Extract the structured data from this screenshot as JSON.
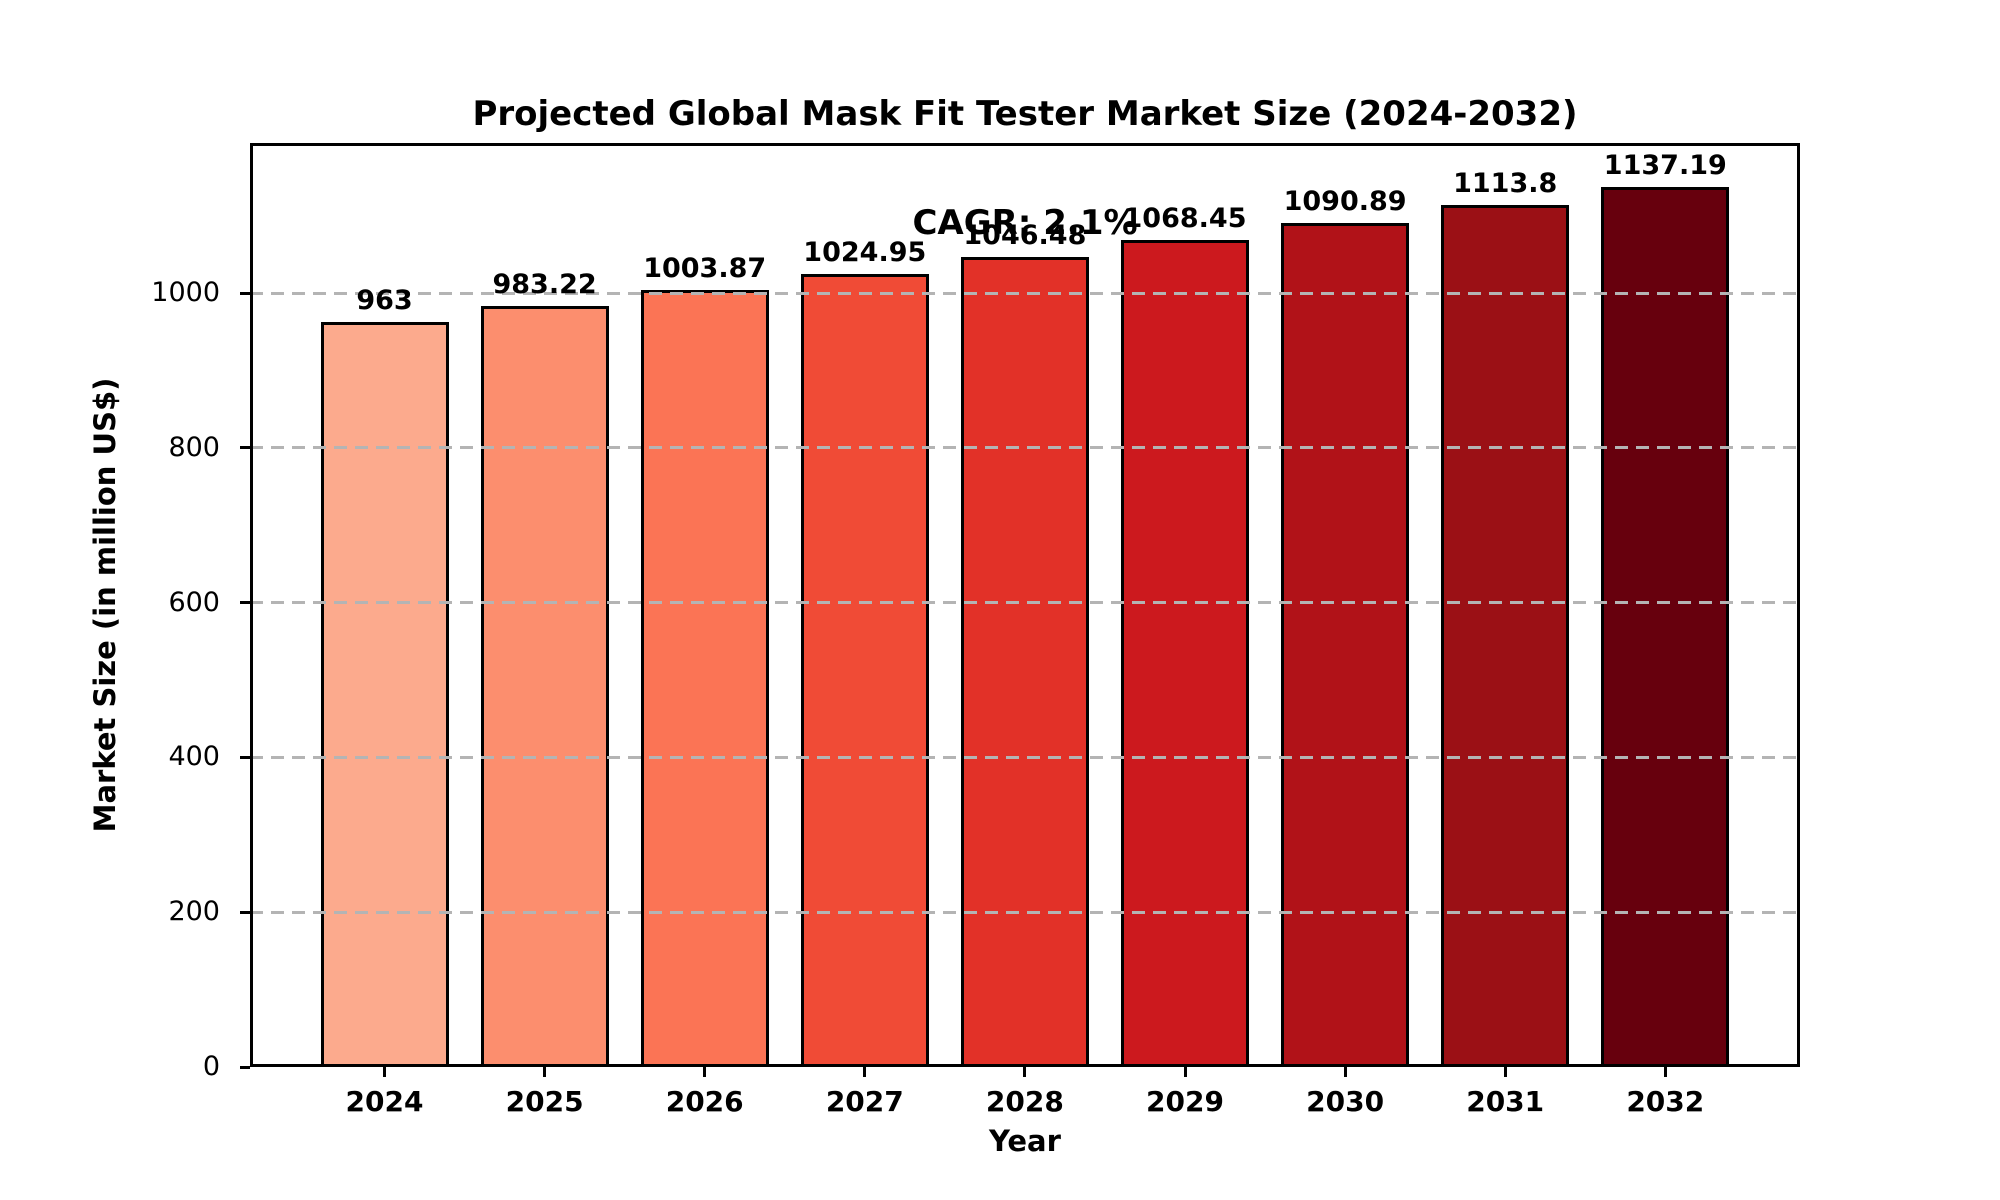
{
  "figure": {
    "background": "#ffffff"
  },
  "chart_data": {
    "type": "bar",
    "title": "Projected Global Mask Fit Tester Market Size (2024-2032)",
    "xlabel": "Year",
    "ylabel": "Market Size (in million US$)",
    "annotation": "CAGR: 2.1%",
    "categories": [
      "2024",
      "2025",
      "2026",
      "2027",
      "2028",
      "2029",
      "2030",
      "2031",
      "2032"
    ],
    "values": [
      963,
      983.22,
      1003.87,
      1024.95,
      1046.48,
      1068.45,
      1090.89,
      1113.8,
      1137.19
    ],
    "bar_labels": [
      "963",
      "983.22",
      "1003.87",
      "1024.95",
      "1046.48",
      "1068.45",
      "1090.89",
      "1113.8",
      "1137.19"
    ],
    "bar_colors": [
      "#fcaa8d",
      "#fc8e6e",
      "#fb7455",
      "#f04b36",
      "#e23128",
      "#cc191e",
      "#b11218",
      "#9b1015",
      "#67000d"
    ],
    "bar_edge_color": "#000000",
    "yticks": [
      0,
      200,
      400,
      600,
      800,
      1000
    ],
    "ytick_labels": [
      "0",
      "200",
      "400",
      "600",
      "800",
      "1000"
    ],
    "ylim": [
      0,
      1194
    ],
    "grid": {
      "axis": "y",
      "style": "dashed",
      "color": "#b4b4b4",
      "on_top_of_bars": true
    },
    "legend": "none"
  }
}
